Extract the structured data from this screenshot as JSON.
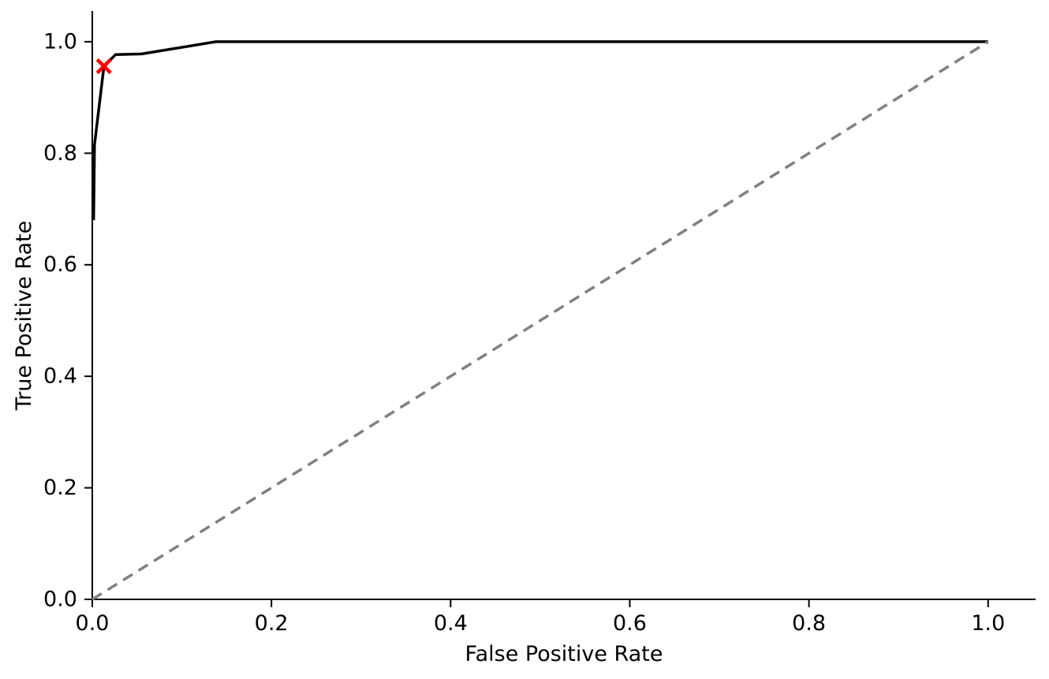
{
  "figure": {
    "background": "#ffffff",
    "plot_bg": "#ffffff"
  },
  "chart_data": {
    "type": "line",
    "title": "",
    "xlabel": "False Positive Rate",
    "ylabel": "True Positive Rate",
    "xlim": [
      0,
      1.053
    ],
    "ylim": [
      0,
      1.055
    ],
    "grid": false,
    "legend": "none",
    "axis_color": "#000000",
    "xticks": {
      "values": [
        0.0,
        0.2,
        0.4,
        0.6,
        0.8,
        1.0
      ],
      "labels": [
        "0.0",
        "0.2",
        "0.4",
        "0.6",
        "0.8",
        "1.0"
      ]
    },
    "yticks": {
      "values": [
        0.0,
        0.2,
        0.4,
        0.6,
        0.8,
        1.0
      ],
      "labels": [
        "0.0",
        "0.2",
        "0.4",
        "0.6",
        "0.8",
        "1.0"
      ]
    },
    "series": [
      {
        "name": "roc-curve",
        "color": "#000000",
        "dash": "solid",
        "width": 3.5,
        "points": [
          [
            0.0015,
            0.68
          ],
          [
            0.0025,
            0.815
          ],
          [
            0.013,
            0.956
          ],
          [
            0.026,
            0.977
          ],
          [
            0.055,
            0.978
          ],
          [
            0.138,
            1.0
          ],
          [
            1.0,
            1.0
          ]
        ]
      },
      {
        "name": "chance-diagonal",
        "color": "#808080",
        "dash": "14 9",
        "width": 3.5,
        "points": [
          [
            0.0,
            0.0
          ],
          [
            1.0,
            1.0
          ]
        ]
      }
    ],
    "markers": [
      {
        "name": "operating-point",
        "shape": "x",
        "color": "#ff0000",
        "x": 0.013,
        "y": 0.956,
        "size": 17,
        "stroke_width": 4.5
      }
    ]
  }
}
